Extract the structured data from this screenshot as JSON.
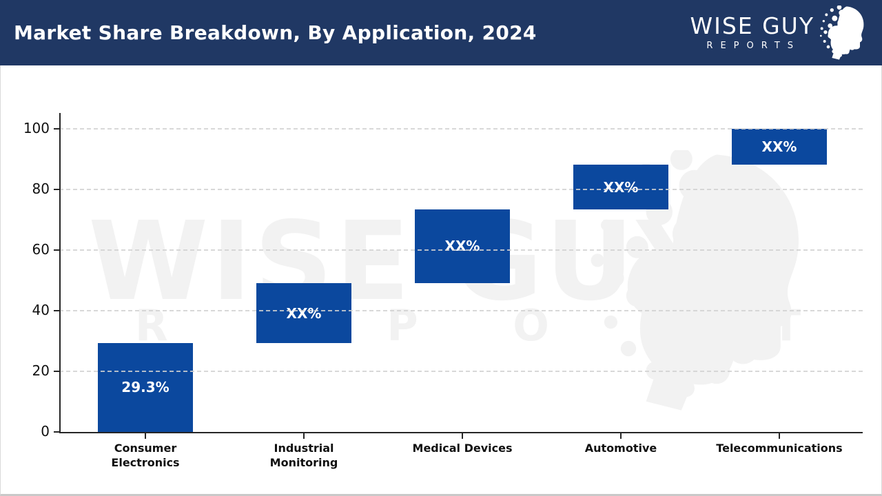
{
  "header": {
    "title": "Market Share Breakdown, By Application, 2024",
    "logo": {
      "name": "WISE GUY",
      "sub": "REPORTS",
      "icon": "dotted-head-profile-icon"
    }
  },
  "watermark": {
    "name": "WISE GUY",
    "sub": "R E P O R T S",
    "icon": "dotted-head-profile-icon"
  },
  "colors": {
    "header_bg": "#203864",
    "bar": "#0b489e",
    "axis": "#262626",
    "grid": "#d2d2d2",
    "bar_label": "#ffffff"
  },
  "chart_data": {
    "type": "bar",
    "subtype": "waterfall",
    "title": "Market Share Breakdown, By Application, 2024",
    "categories": [
      "Consumer Electronics",
      "Industrial Monitoring",
      "Medical Devices",
      "Automotive",
      "Telecommunications"
    ],
    "category_display": [
      "Consumer\nElectronics",
      "Industrial\nMonitoring",
      "Medical Devices",
      "Automotive",
      "Telecommunications"
    ],
    "segments": [
      {
        "category": "Consumer Electronics",
        "label": "29.3%",
        "start": 0,
        "end": 29.3,
        "value": 29.3
      },
      {
        "category": "Industrial Monitoring",
        "label": "XX%",
        "start": 29.3,
        "end": 49.0,
        "value": 19.7
      },
      {
        "category": "Medical Devices",
        "label": "XX%",
        "start": 49.0,
        "end": 73.4,
        "value": 24.4
      },
      {
        "category": "Automotive",
        "label": "XX%",
        "start": 73.4,
        "end": 88.0,
        "value": 14.6
      },
      {
        "category": "Telecommunications",
        "label": "XX%",
        "start": 88.0,
        "end": 100.0,
        "value": 12.0
      }
    ],
    "y_ticks": [
      0,
      20,
      40,
      60,
      80,
      100
    ],
    "ylim": [
      0,
      105
    ],
    "xlabel": "",
    "ylabel": "",
    "grid": "horizontal-dashed",
    "legend": "none"
  }
}
